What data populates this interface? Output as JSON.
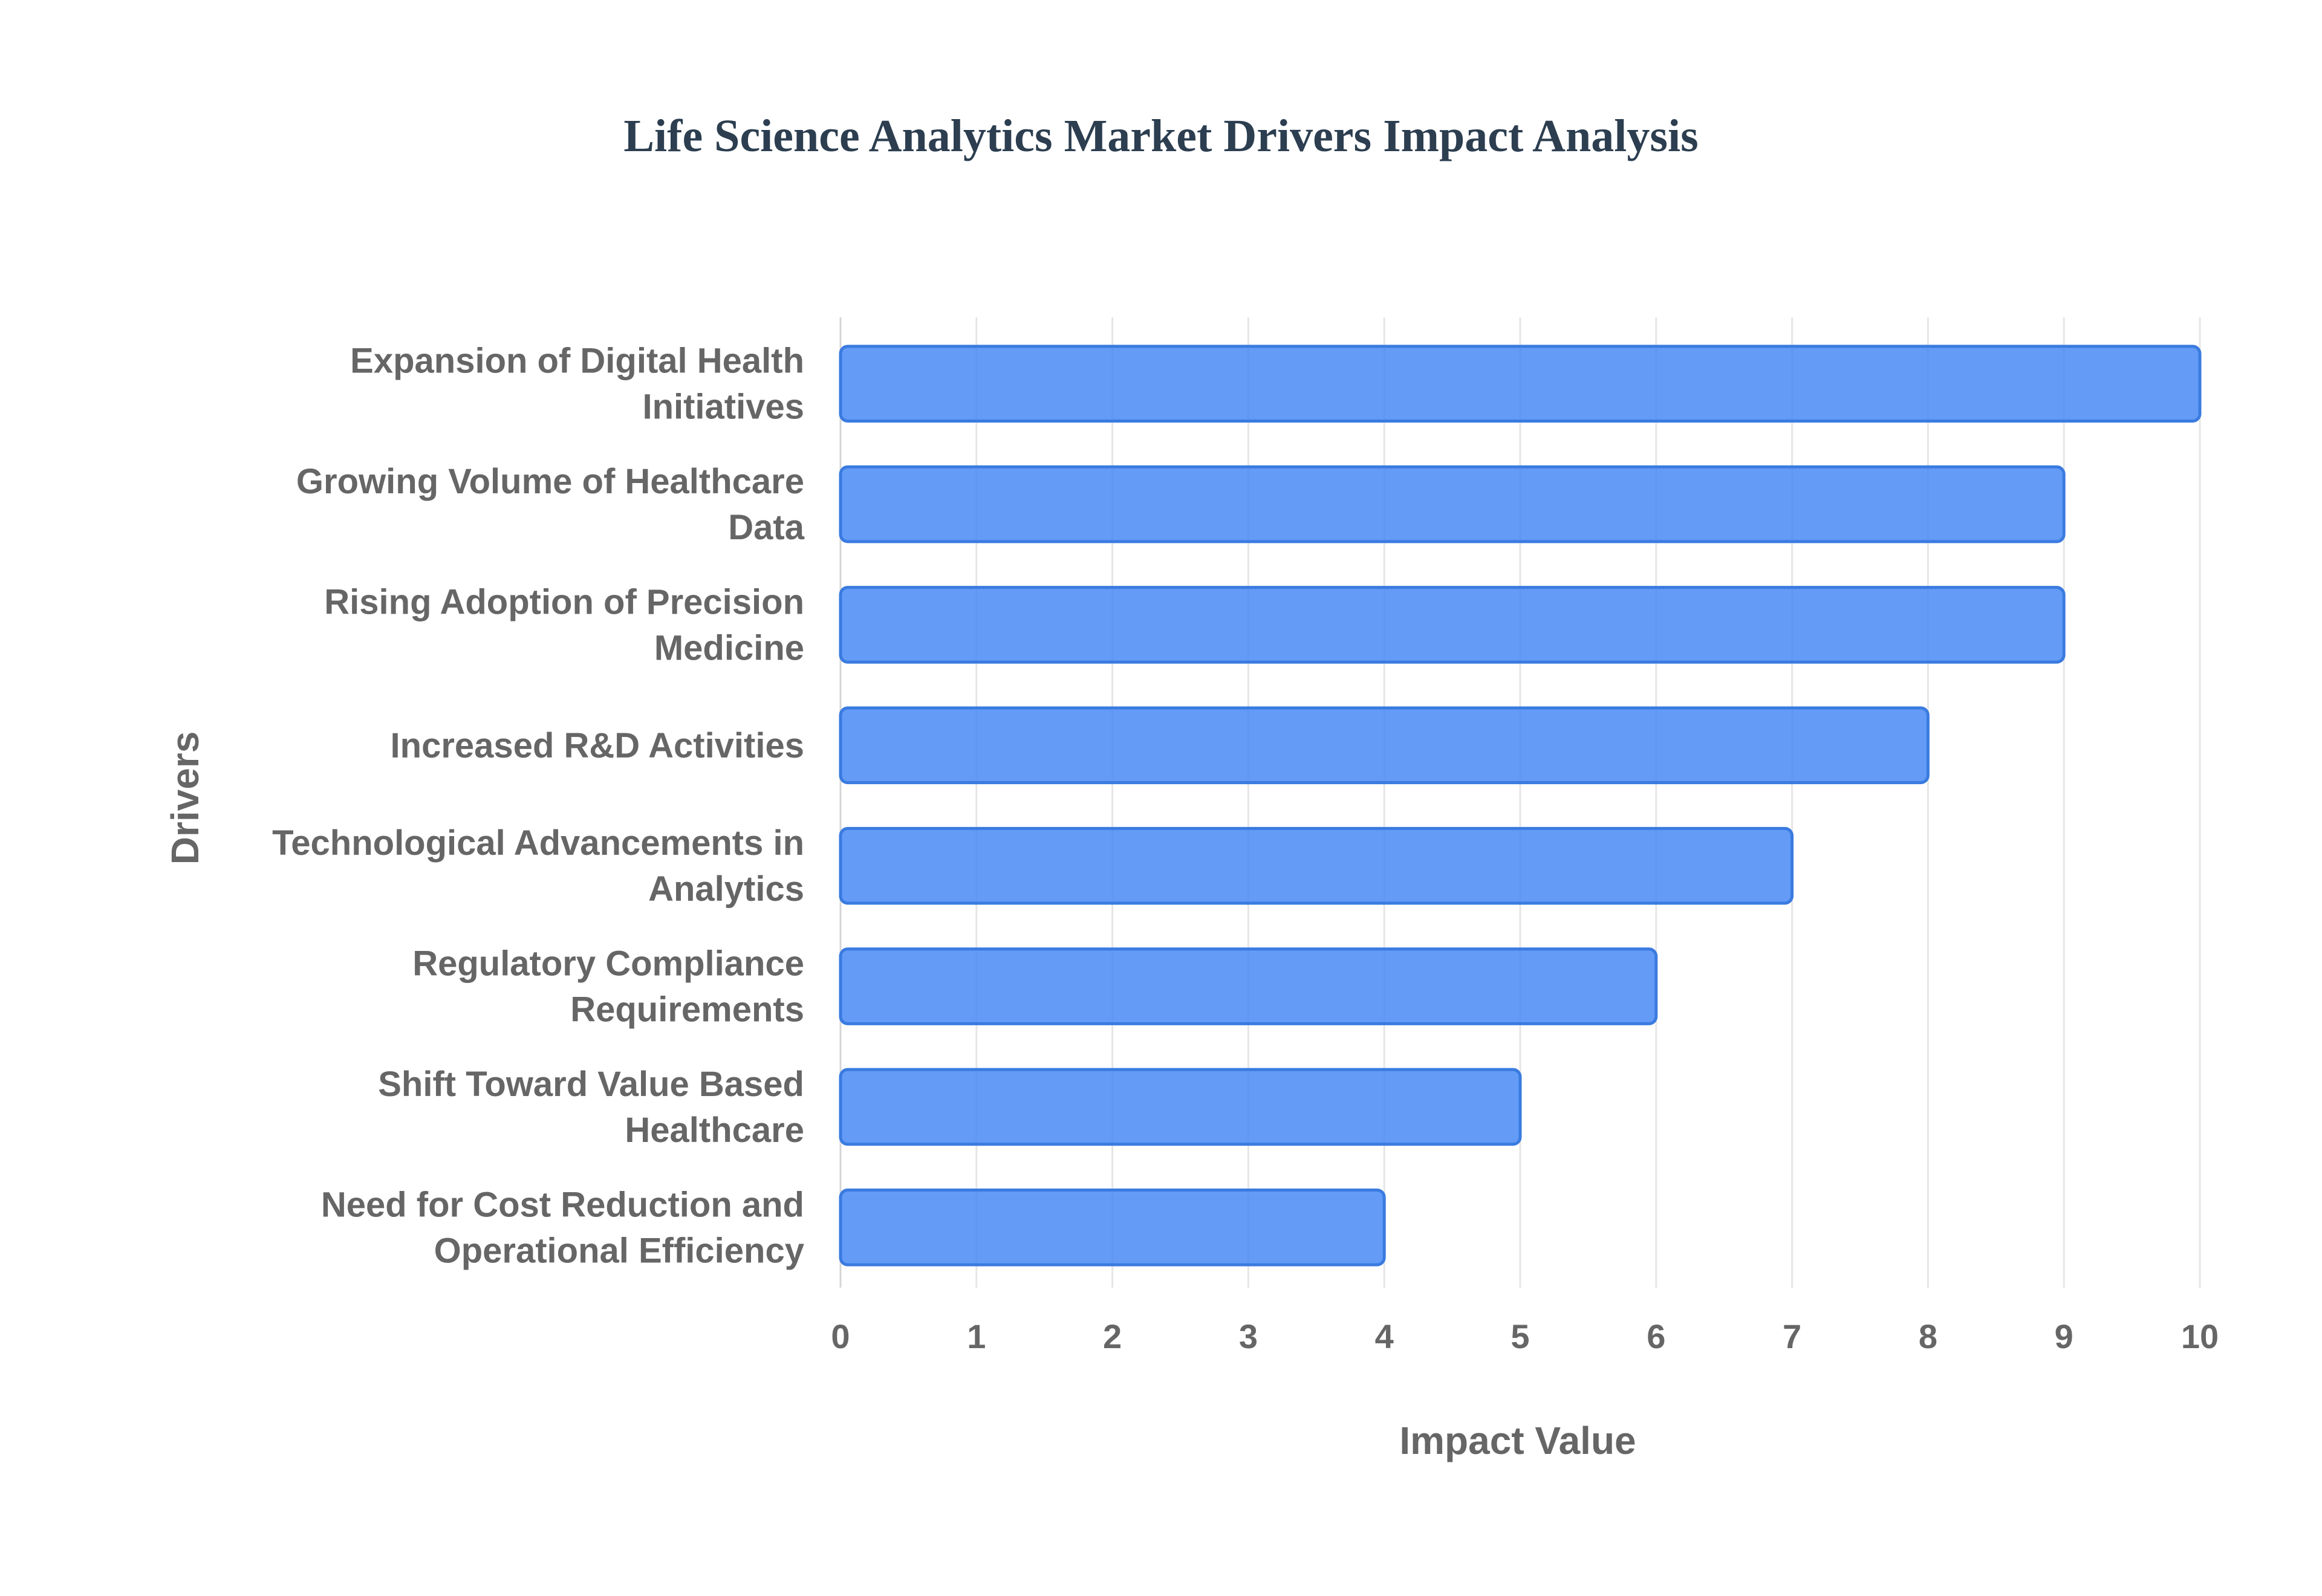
{
  "chart_data": {
    "type": "bar",
    "orientation": "horizontal",
    "title": "Life Science Analytics Market Drivers Impact Analysis",
    "xlabel": "Impact Value",
    "ylabel": "Drivers",
    "xlim": [
      0,
      10
    ],
    "xticks": [
      "0",
      "1",
      "2",
      "3",
      "4",
      "5",
      "6",
      "7",
      "8",
      "9",
      "10"
    ],
    "grid": true,
    "bar_color": "#4285f4",
    "bar_border_color": "#3a7be0",
    "categories": [
      [
        "Expansion of Digital Health",
        "Initiatives"
      ],
      [
        "Growing Volume of Healthcare",
        "Data"
      ],
      [
        "Rising Adoption of Precision",
        "Medicine"
      ],
      [
        "Increased R&D Activities"
      ],
      [
        "Technological Advancements in",
        "Analytics"
      ],
      [
        "Regulatory Compliance",
        "Requirements"
      ],
      [
        "Shift Toward Value Based",
        "Healthcare"
      ],
      [
        "Need for Cost Reduction and",
        "Operational Efficiency"
      ]
    ],
    "values": [
      10,
      9,
      9,
      8,
      7,
      6,
      5,
      4
    ]
  }
}
